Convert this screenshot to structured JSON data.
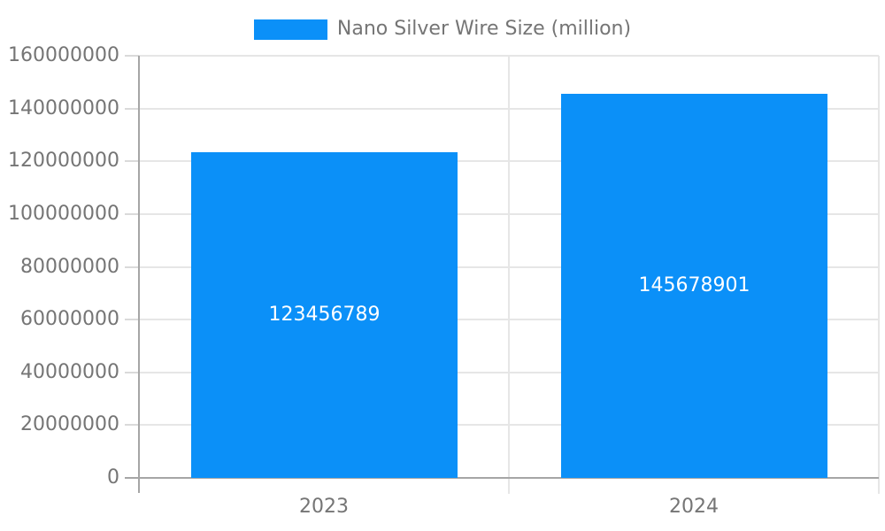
{
  "legend": {
    "label": "Nano Silver Wire Size (million)"
  },
  "colors": {
    "bar": "#0b90f8",
    "axis_text": "#757575",
    "grid": "#e6e6e6",
    "tick": "#dadada",
    "axis_line": "#a6a6a6",
    "bar_label": "#ffffff"
  },
  "chart_data": {
    "type": "bar",
    "title": "",
    "xlabel": "",
    "ylabel": "",
    "categories": [
      "2023",
      "2024"
    ],
    "series": [
      {
        "name": "Nano Silver Wire Size (million)",
        "values": [
          123456789,
          145678901
        ]
      }
    ],
    "data_labels": [
      "123456789",
      "145678901"
    ],
    "ylim": [
      0,
      160000000
    ],
    "ytick_step": 20000000,
    "yticks": [
      0,
      20000000,
      40000000,
      60000000,
      80000000,
      100000000,
      120000000,
      140000000,
      160000000
    ],
    "grid": true,
    "legend_position": "top"
  }
}
